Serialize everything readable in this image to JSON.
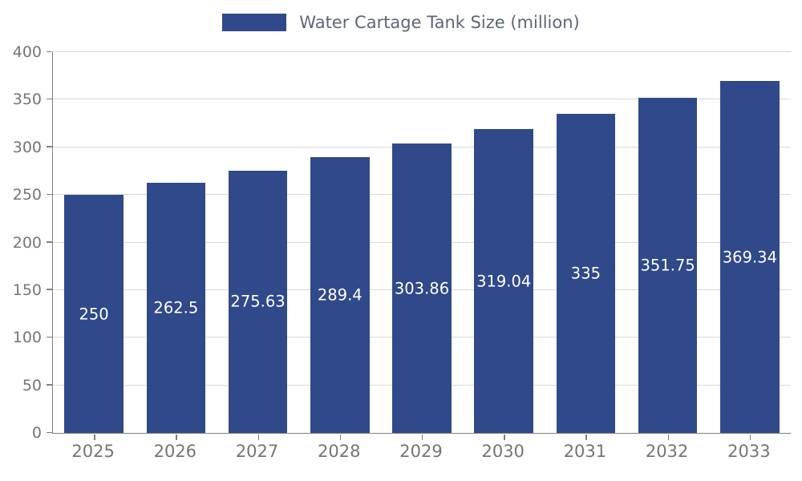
{
  "legend": {
    "label": "Water Cartage Tank Size (million)"
  },
  "chart_data": {
    "type": "bar",
    "title": "Water Cartage Tank Size (million)",
    "categories": [
      "2025",
      "2026",
      "2027",
      "2028",
      "2029",
      "2030",
      "2031",
      "2032",
      "2033"
    ],
    "values": [
      250,
      262.5,
      275.63,
      289.4,
      303.86,
      319.04,
      335,
      351.75,
      369.34
    ],
    "value_labels": [
      "250",
      "262.5",
      "275.63",
      "289.4",
      "303.86",
      "319.04",
      "335",
      "351.75",
      "369.34"
    ],
    "xlabel": "",
    "ylabel": "",
    "ylim": [
      0,
      400
    ],
    "yticks": [
      0,
      50,
      100,
      150,
      200,
      250,
      300,
      350,
      400
    ],
    "grid": true,
    "legend_position": "top center",
    "bar_color": "#30498a",
    "bar_label_color": "#ffffff",
    "axis_color": "#808080",
    "gridline_color": "#d9d9d9",
    "tick_label_color": "#757575"
  }
}
